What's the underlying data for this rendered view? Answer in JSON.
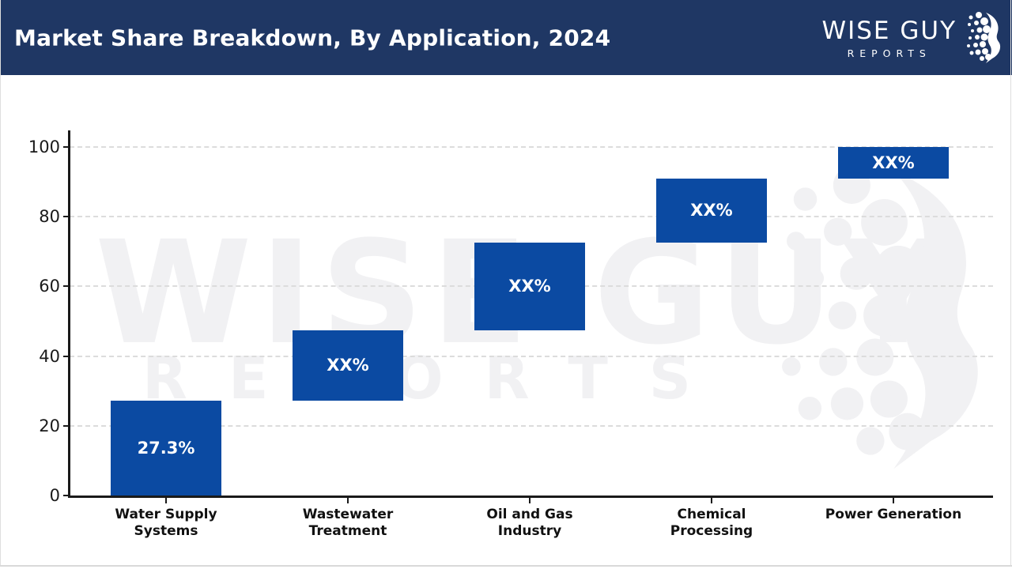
{
  "header": {
    "title": "Market Share Breakdown, By Application, 2024",
    "logo_line1": "WISE GUY",
    "logo_line2": "REPORTS"
  },
  "watermark": {
    "line1": "WISE GUY",
    "line2": "REPORTS"
  },
  "colors": {
    "header_bg": "#1f3764",
    "bar": "#0b4aa2",
    "grid": "#dcdcdc",
    "axis": "#1a1a1a",
    "watermark": "#f1f1f3",
    "bar_label": "#ffffff"
  },
  "chart_data": {
    "type": "bar",
    "variant": "waterfall",
    "title": "Market Share Breakdown, By Application, 2024",
    "categories": [
      "Water Supply Systems",
      "Wastewater Treatment",
      "Oil and Gas Industry",
      "Chemical Processing",
      "Power Generation"
    ],
    "category_labels_2line": [
      "Water Supply\nSystems",
      "Wastewater\nTreatment",
      "Oil and Gas\nIndustry",
      "Chemical\nProcessing",
      "Power Generation"
    ],
    "segments": [
      {
        "category": "Water Supply Systems",
        "start": 0,
        "end": 27.3,
        "label": "27.3%"
      },
      {
        "category": "Wastewater Treatment",
        "start": 27.3,
        "end": 47.5,
        "label": "XX%"
      },
      {
        "category": "Oil and Gas Industry",
        "start": 47.5,
        "end": 72.5,
        "label": "XX%"
      },
      {
        "category": "Chemical Processing",
        "start": 72.5,
        "end": 91.0,
        "label": "XX%"
      },
      {
        "category": "Power Generation",
        "start": 91.0,
        "end": 100.0,
        "label": "XX%"
      }
    ],
    "y_ticks": [
      0,
      20,
      40,
      60,
      80,
      100
    ],
    "ylim": [
      0,
      105
    ],
    "xlabel": "",
    "ylabel": "",
    "grid": "horizontal-dashed",
    "legend": false
  }
}
